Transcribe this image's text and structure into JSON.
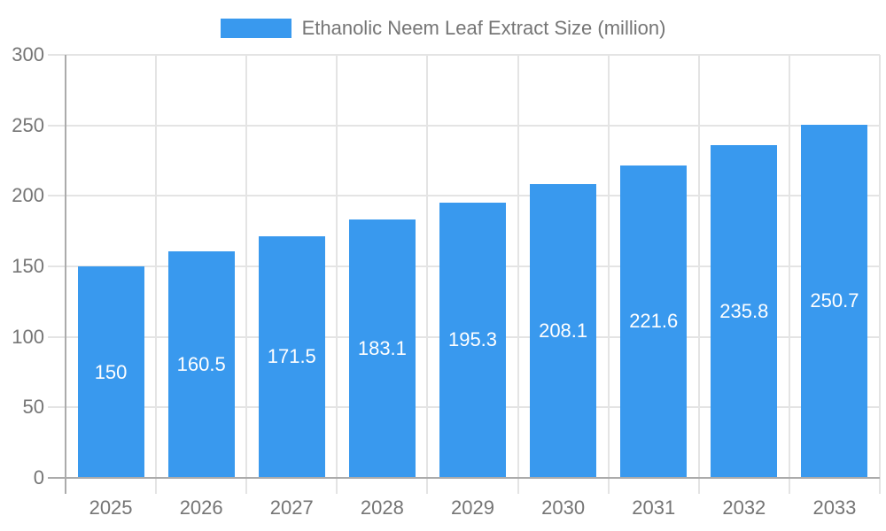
{
  "legend": {
    "label": "Ethanolic Neem Leaf Extract Size (million)"
  },
  "colors": {
    "bar": "#3999EE",
    "grid": "#E4E4E4",
    "axis": "#ABABAB",
    "tick_text": "#757575",
    "legend_text": "#757575",
    "value_text": "#FFFFFF",
    "background": "#FFFFFF"
  },
  "chart_data": {
    "type": "bar",
    "title": "",
    "categories": [
      "2025",
      "2026",
      "2027",
      "2028",
      "2029",
      "2030",
      "2031",
      "2032",
      "2033"
    ],
    "series": [
      {
        "name": "Ethanolic Neem Leaf Extract Size (million)",
        "values": [
          150,
          160.5,
          171.5,
          183.1,
          195.3,
          208.1,
          221.6,
          235.8,
          250.7
        ]
      }
    ],
    "value_labels": [
      "150",
      "160.5",
      "171.5",
      "183.1",
      "195.3",
      "208.1",
      "221.6",
      "235.8",
      "250.7"
    ],
    "xlabel": "",
    "ylabel": "",
    "ylim": [
      0,
      300
    ],
    "yticks": [
      0,
      50,
      100,
      150,
      200,
      250,
      300
    ],
    "grid": true,
    "legend_position": "top-center"
  }
}
